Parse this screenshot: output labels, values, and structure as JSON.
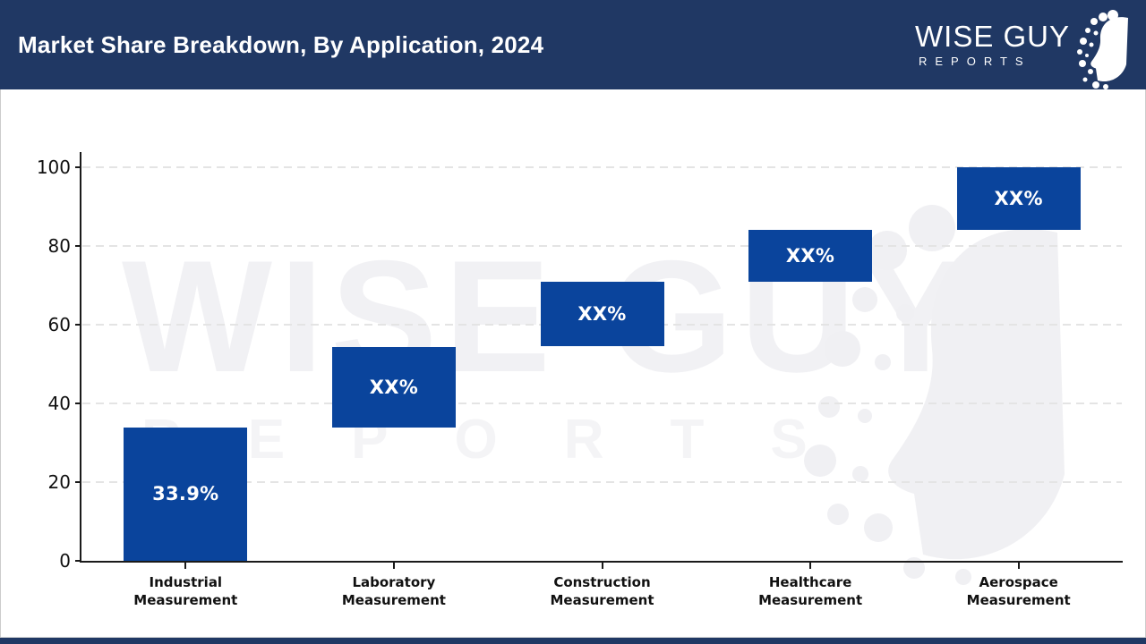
{
  "header": {
    "title": "Market Share Breakdown, By Application, 2024",
    "bg_color": "#203864",
    "logo": {
      "line1": "WISE GUY",
      "line2": "REPORTS"
    }
  },
  "watermark": {
    "line1": "WISE GUY",
    "line2": "REPORTS"
  },
  "chart_data": {
    "type": "bar",
    "subtype": "floating-waterfall",
    "title": "Market Share Breakdown, By Application, 2024",
    "categories": [
      "Industrial Measurement",
      "Laboratory Measurement",
      "Construction Measurement",
      "Healthcare Measurement",
      "Aerospace Measurement"
    ],
    "bars": [
      {
        "category": "Industrial Measurement",
        "start": 0,
        "end": 33.9,
        "label": "33.9%"
      },
      {
        "category": "Laboratory Measurement",
        "start": 33.9,
        "end": 54.3,
        "label": "XX%"
      },
      {
        "category": "Construction Measurement",
        "start": 54.5,
        "end": 70.8,
        "label": "XX%"
      },
      {
        "category": "Healthcare Measurement",
        "start": 71.0,
        "end": 84.0,
        "label": "XX%"
      },
      {
        "category": "Aerospace Measurement",
        "start": 84.1,
        "end": 100,
        "label": "XX%"
      }
    ],
    "yticks": [
      0,
      20,
      40,
      60,
      80,
      100
    ],
    "ylim": [
      0,
      104
    ],
    "xlabel": "",
    "ylabel": "",
    "legend": "none",
    "grid": "horizontal-dashed",
    "bar_color": "#0a449c",
    "axis_color": "#1a1a1a",
    "grid_color": "#e4e4e4",
    "value_label_color": "#ffffff"
  },
  "footer": {
    "bg_color": "#203864"
  }
}
